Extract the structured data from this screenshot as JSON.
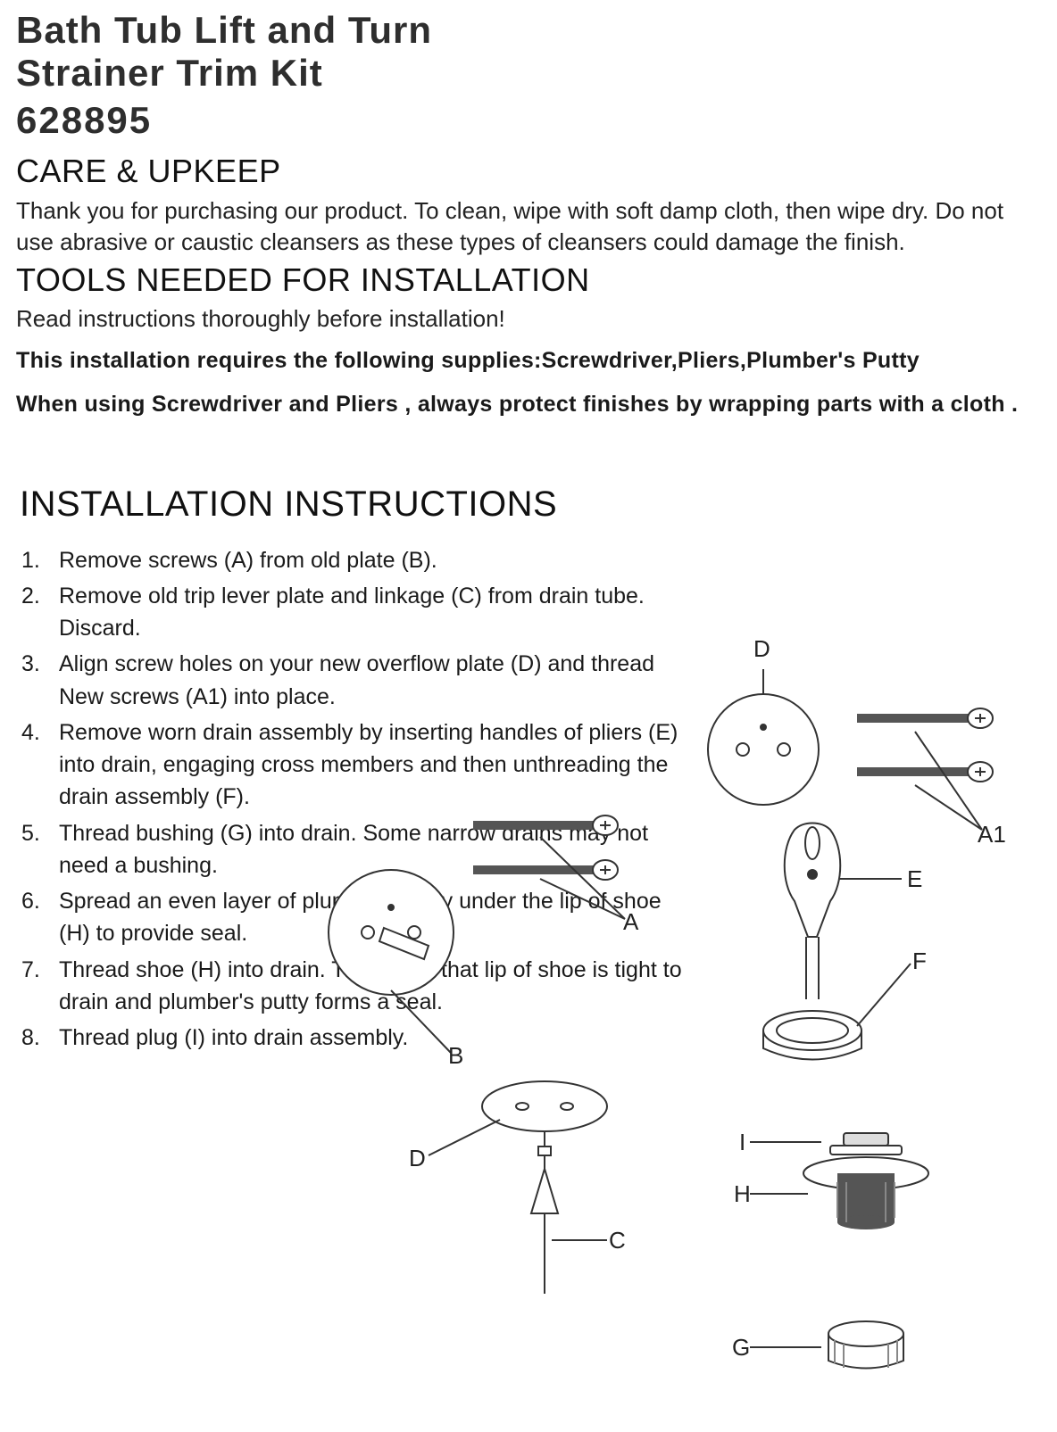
{
  "title_line1": "Bath Tub Lift and Turn",
  "title_line2": "Strainer Trim Kit",
  "part_number": "628895",
  "care_heading": "CARE & UPKEEP",
  "care_text": "Thank you for purchasing our product. To clean, wipe with soft damp cloth, then wipe dry. Do not use abrasive or caustic cleansers as these types of cleansers could damage the finish.",
  "tools_heading": "TOOLS NEEDED FOR INSTALLATION",
  "tools_intro": "Read instructions thoroughly before installation!",
  "tools_supplies": "This installation requires the following supplies:Screwdriver,Pliers,Plumber's Putty",
  "tools_warning": "When using Screwdriver and Pliers , always protect finishes by wrapping parts with a cloth .",
  "install_heading": "INSTALLATION INSTRUCTIONS",
  "steps": [
    {
      "n": "1.",
      "t": "Remove screws (A) from old  plate (B)."
    },
    {
      "n": "2.",
      "t": "Remove old trip lever plate and linkage (C) from drain tube. Discard."
    },
    {
      "n": "3.",
      "t": "Align screw holes on your new overflow plate (D) and thread New screws (A1) into place."
    },
    {
      "n": "4.",
      "t": "Remove worn drain assembly by inserting handles of pliers (E) into drain, engaging cross members and then unthreading the drain assembly (F)."
    },
    {
      "n": "5.",
      "t": "Thread bushing (G) into drain. Some narrow drains may not need a bushing."
    },
    {
      "n": "6.",
      "t": "Spread an even layer of plumber's putty under the lip of shoe (H) to provide seal."
    },
    {
      "n": "7.",
      "t": "Thread shoe (H) into drain. Tighten so that lip of shoe is tight to drain and plumber's putty forms a seal."
    },
    {
      "n": "8.",
      "t": "Thread plug (I) into drain assembly."
    }
  ],
  "labels": {
    "A": "A",
    "A1": "A1",
    "B": "B",
    "C": "C",
    "D": "D",
    "E": "E",
    "F": "F",
    "G": "G",
    "H": "H",
    "I": "I"
  },
  "colors": {
    "stroke": "#333333",
    "bg": "#ffffff",
    "text": "#1a1a1a"
  }
}
